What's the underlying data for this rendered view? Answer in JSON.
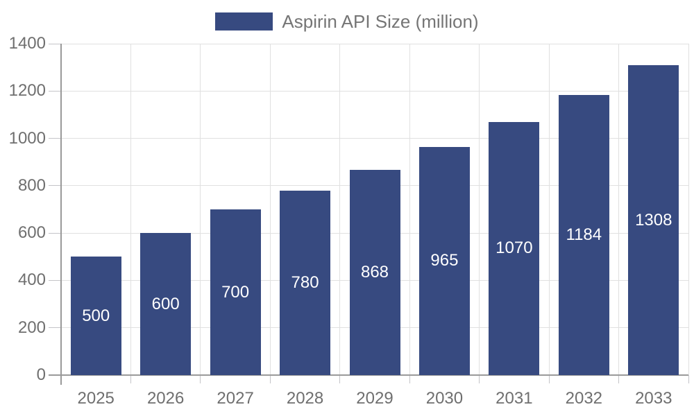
{
  "chart_data": {
    "type": "bar",
    "title": "",
    "legend_label": "Aspirin API Size (million)",
    "legend_position": "top-center",
    "categories": [
      "2025",
      "2026",
      "2027",
      "2028",
      "2029",
      "2030",
      "2031",
      "2032",
      "2033"
    ],
    "series": [
      {
        "name": "Aspirin API Size (million)",
        "values": [
          500,
          600,
          700,
          780,
          868,
          965,
          1070,
          1184,
          1308
        ]
      }
    ],
    "bar_value_labels": [
      "500",
      "600",
      "700",
      "780",
      "868",
      "965",
      "1070",
      "1184",
      "1308"
    ],
    "xlabel": "",
    "ylabel": "",
    "ylim": [
      0,
      1400
    ],
    "yticks": [
      0,
      200,
      400,
      600,
      800,
      1000,
      1200,
      1400
    ],
    "grid": "horizontal and vertical gridlines"
  },
  "colors": {
    "bar": "#374a80",
    "bar_value_label": "#ffffff",
    "grid_line": "#e0e0e0",
    "axis_line": "#999999",
    "tick_line": "#c4c4c8",
    "tick_label": "#6f6f6f",
    "legend_text": "#757575",
    "background": "#ffffff"
  }
}
